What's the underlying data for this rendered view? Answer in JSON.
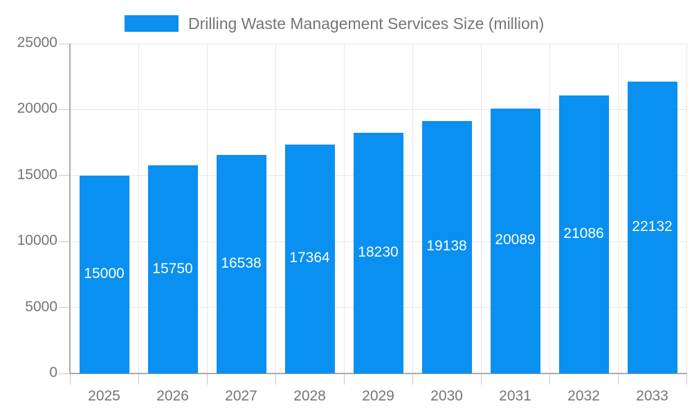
{
  "chart_data": {
    "type": "bar",
    "title": "Drilling Waste Management Services Size (million)",
    "legend": {
      "position": "top",
      "label": "Drilling Waste Management Services Size (million)"
    },
    "categories": [
      "2025",
      "2026",
      "2027",
      "2028",
      "2029",
      "2030",
      "2031",
      "2032",
      "2033"
    ],
    "series": [
      {
        "name": "Drilling Waste Management Services Size (million)",
        "values": [
          15000,
          15750,
          16538,
          17364,
          18230,
          19138,
          20089,
          21086,
          22132
        ]
      }
    ],
    "value_labels_shown": true,
    "xlabel": "",
    "ylabel": "",
    "ylim": [
      0,
      25000
    ],
    "yticks": [
      0,
      5000,
      10000,
      15000,
      20000,
      25000
    ],
    "grid": true,
    "colors": {
      "bar": "#0a90f1",
      "bar_value_text": "#ffffff",
      "axis_text": "#757575",
      "axis_line": "#aaaaaa",
      "gridline": "#e6e6e6",
      "tick": "#c9c9c9",
      "background": "#ffffff"
    }
  }
}
